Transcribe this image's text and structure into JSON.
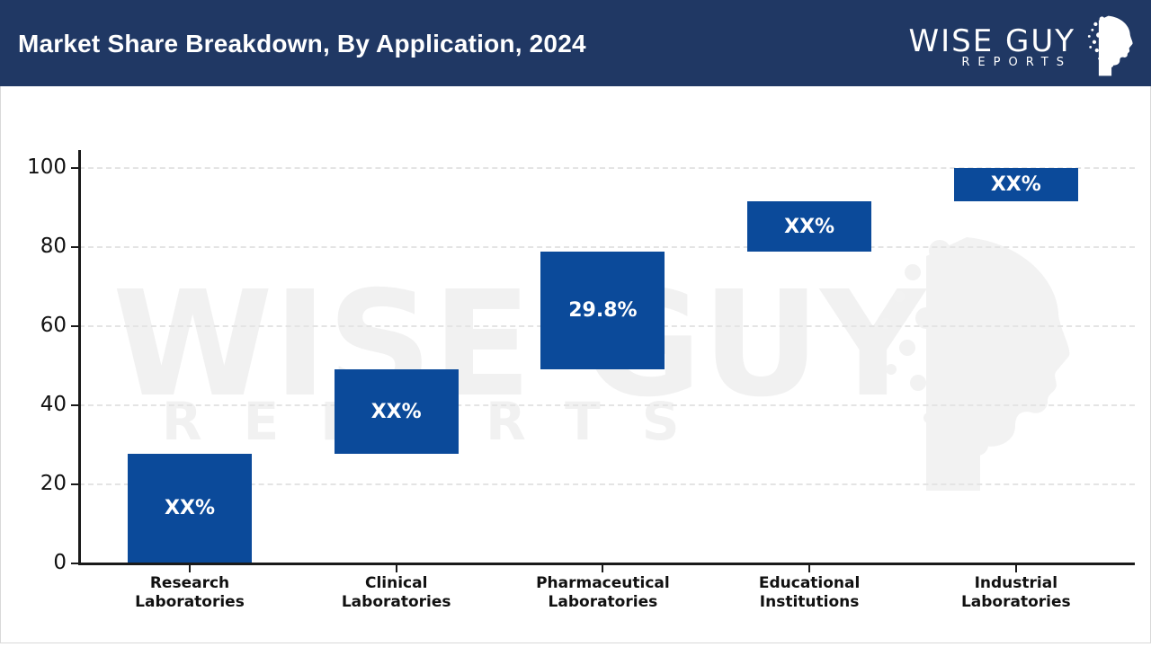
{
  "header": {
    "title": "Market Share Breakdown, By Application, 2024",
    "logo": {
      "line1": "WISE GUY",
      "line2": "REPORTS"
    }
  },
  "watermark": {
    "line1": "WISE GUY",
    "line2": "REPORTS"
  },
  "colors": {
    "header_bg": "#203864",
    "bar": "#0b4a9a",
    "bar_label_text": "#ffffff",
    "gridline": "#e4e4e4",
    "axis": "#1a1a1a",
    "watermark": "#f1f1f1"
  },
  "chart_data": {
    "type": "bar",
    "subtype": "waterfall",
    "title": "Market Share Breakdown, By Application, 2024",
    "xlabel": "",
    "ylabel": "",
    "ylim": [
      0,
      105
    ],
    "y_ticks": [
      0,
      20,
      40,
      60,
      80,
      100
    ],
    "grid": "horizontal-dashed",
    "legend": "none",
    "categories": [
      "Research\nLaboratories",
      "Clinical\nLaboratories",
      "Pharmaceutical\nLaboratories",
      "Educational\nInstitutions",
      "Industrial\nLaboratories"
    ],
    "segments": [
      {
        "category": "Research Laboratories",
        "start": 0,
        "end": 27.6,
        "label": "XX%"
      },
      {
        "category": "Clinical Laboratories",
        "start": 27.6,
        "end": 49.0,
        "label": "XX%"
      },
      {
        "category": "Pharmaceutical Laboratories",
        "start": 49.0,
        "end": 78.8,
        "label": "29.8%"
      },
      {
        "category": "Educational Institutions",
        "start": 78.8,
        "end": 91.6,
        "label": "XX%"
      },
      {
        "category": "Industrial Laboratories",
        "start": 91.6,
        "end": 100,
        "label": "XX%"
      }
    ]
  }
}
